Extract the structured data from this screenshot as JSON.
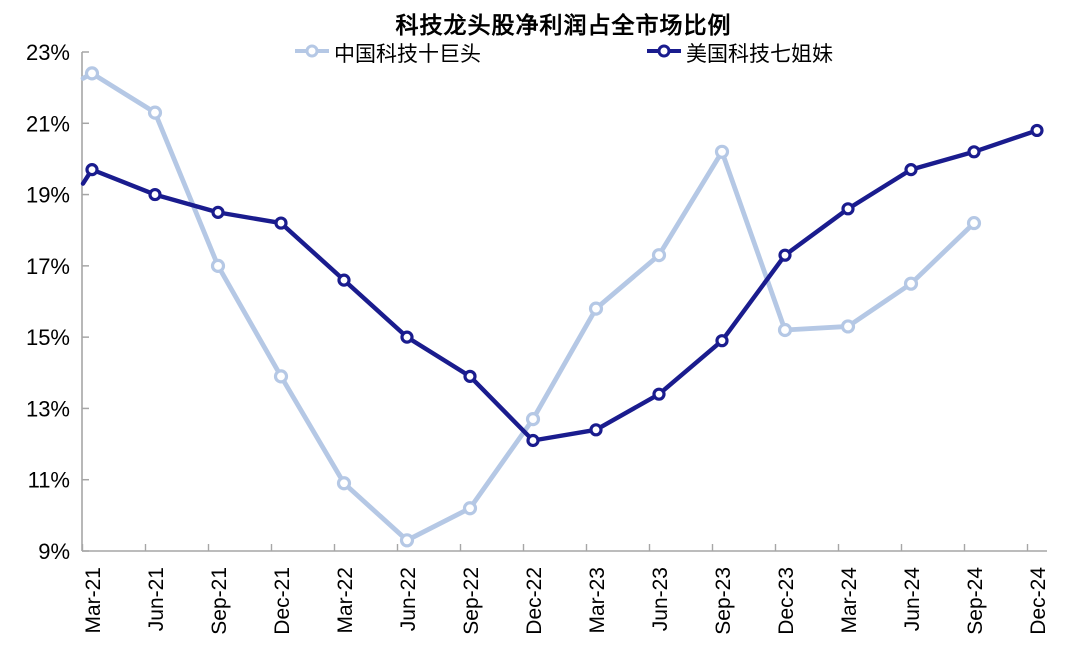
{
  "chart_data": {
    "type": "line",
    "title": "科技龙头股净利润占全市场比例",
    "unit": "%",
    "categories": [
      "Mar-21",
      "Jun-21",
      "Sep-21",
      "Dec-21",
      "Mar-22",
      "Jun-22",
      "Sep-22",
      "Dec-22",
      "Mar-23",
      "Jun-23",
      "Sep-23",
      "Dec-23",
      "Mar-24",
      "Jun-24",
      "Sep-24",
      "Dec-24"
    ],
    "series": [
      {
        "name": "中国科技十巨头",
        "color": "#b5c8e5",
        "values": [
          22.4,
          21.3,
          17.0,
          13.9,
          10.9,
          9.3,
          10.2,
          12.7,
          15.8,
          17.3,
          20.2,
          15.2,
          15.3,
          16.5,
          18.2,
          null
        ]
      },
      {
        "name": "美国科技七姐妹",
        "color": "#1a1c8e",
        "values": [
          19.7,
          19.0,
          18.5,
          18.2,
          16.6,
          15.0,
          13.9,
          12.1,
          12.4,
          13.4,
          14.9,
          17.3,
          18.6,
          19.7,
          20.2,
          20.8
        ]
      }
    ],
    "ylim": [
      9,
      23
    ],
    "y_tick_values": [
      23,
      21,
      19,
      17,
      15,
      13,
      11,
      9
    ],
    "y_tick_labels": [
      "23%",
      "21%",
      "19%",
      "17%",
      "15%",
      "13%",
      "11%",
      "9%"
    ],
    "grid": false,
    "legend_position": "top",
    "axis_color": "#a6a6a6",
    "label_color": "#000000",
    "marker_style": "open-circle"
  }
}
